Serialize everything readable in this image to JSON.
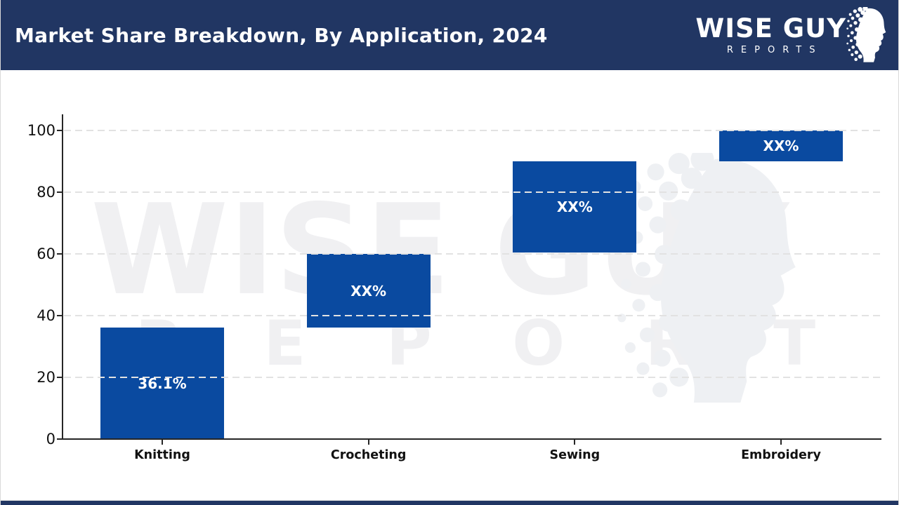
{
  "header": {
    "title": "Market Share Breakdown, By Application, 2024",
    "logo": {
      "wordmark": "WISE GUY",
      "subtext": "REPORTS"
    }
  },
  "watermark": {
    "line1": "WISE GUY",
    "line2": "R E P O R T S"
  },
  "colors": {
    "header_bg": "#213663",
    "bar_fill": "#0a4aa0",
    "bar_label": "#ffffff",
    "axis": "#262626",
    "tick_label": "#111111",
    "gridline": "#e2e2e2",
    "watermark": "#f0f0f2",
    "footer_bg": "#213663"
  },
  "chart_data": {
    "type": "bar",
    "subtype": "waterfall",
    "title": "Market Share Breakdown, By Application, 2024",
    "categories": [
      "Knitting",
      "Crocheting",
      "Sewing",
      "Embroidery"
    ],
    "segments": [
      {
        "category": "Knitting",
        "start": 0.0,
        "end": 36.1,
        "label": "36.1%"
      },
      {
        "category": "Crocheting",
        "start": 36.1,
        "end": 60.0,
        "label": "XX%"
      },
      {
        "category": "Sewing",
        "start": 60.5,
        "end": 90.0,
        "label": "XX%"
      },
      {
        "category": "Embroidery",
        "start": 90.0,
        "end": 100.0,
        "label": "XX%"
      }
    ],
    "xlabel": "",
    "ylabel": "",
    "ylim": [
      0,
      105
    ],
    "yticks": [
      0,
      20,
      40,
      60,
      80,
      100
    ],
    "grid": "horizontal-dashed",
    "legend": "none"
  }
}
